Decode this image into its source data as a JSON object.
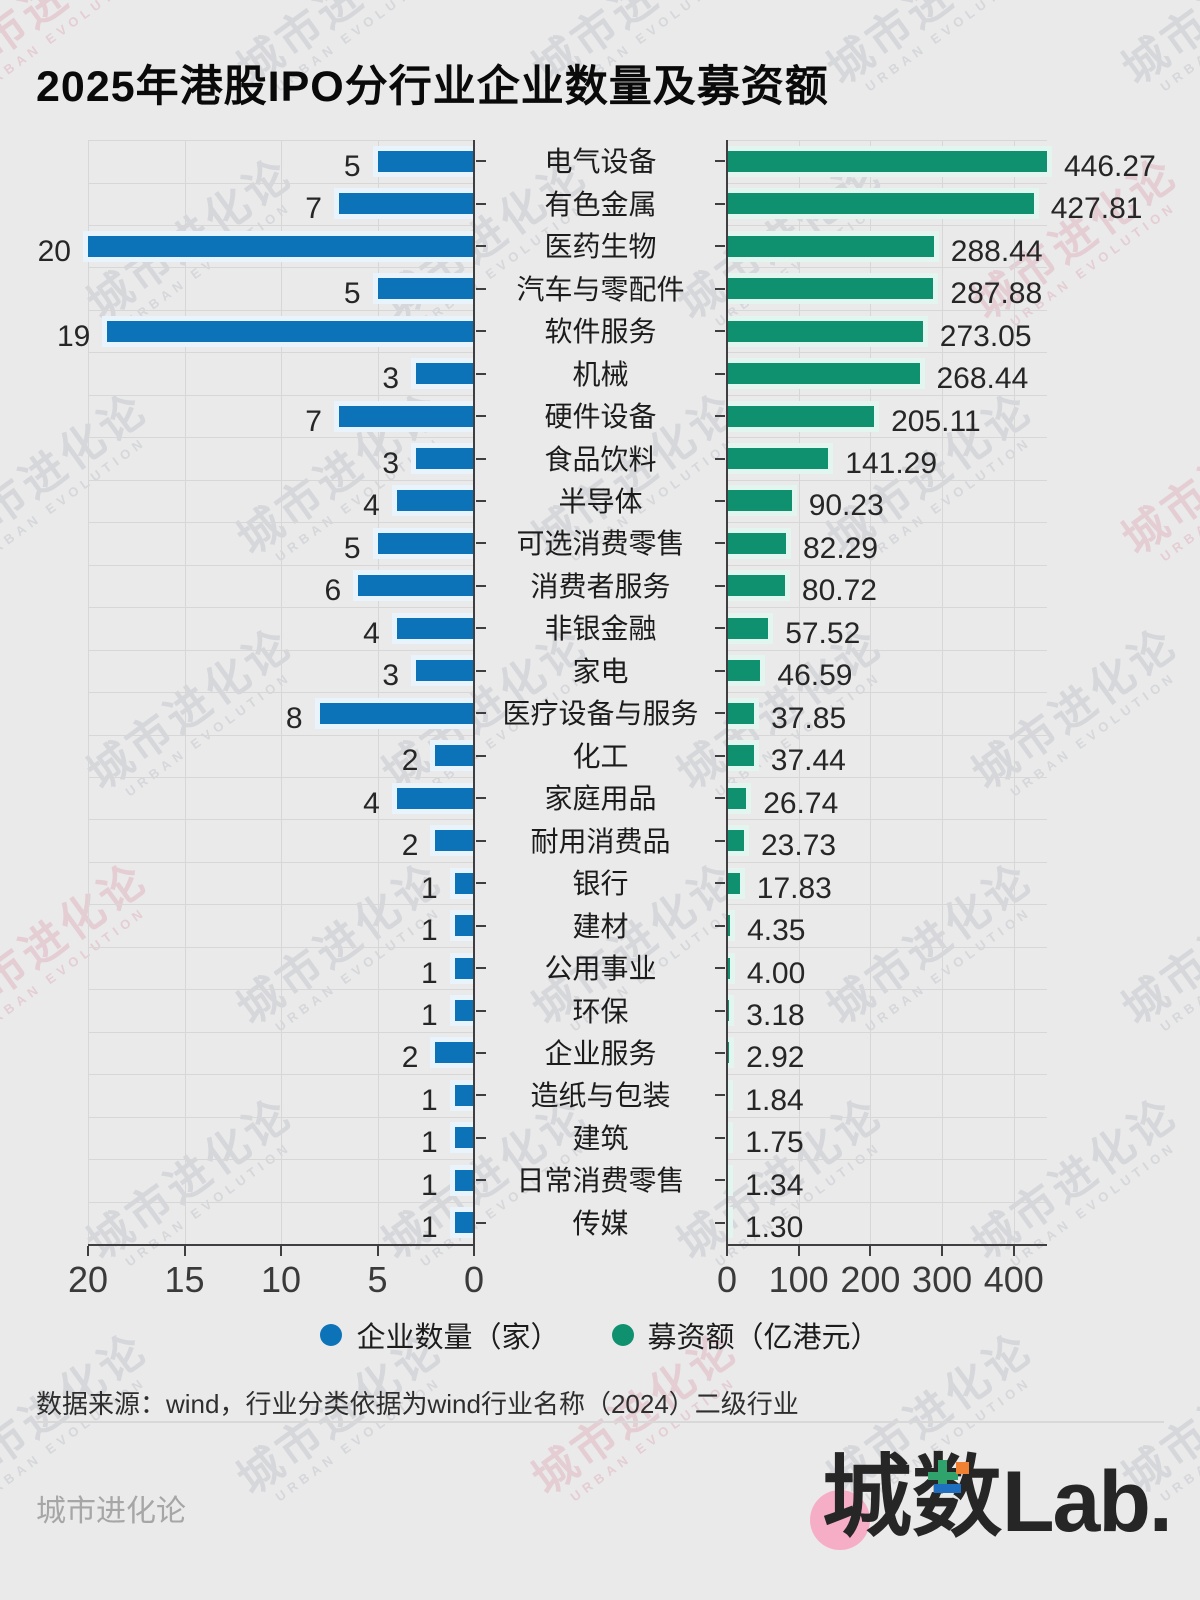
{
  "title": "2025年港股IPO分行业企业数量及募资额",
  "watermark": {
    "line1": "城市进化论",
    "line2": "URBAN EVOLUTION"
  },
  "chart_data": {
    "type": "bar",
    "layout": "horizontal-butterfly",
    "title": "2025年港股IPO分行业企业数量及募资额",
    "categories": [
      "电气设备",
      "有色金属",
      "医药生物",
      "汽车与零配件",
      "软件服务",
      "机械",
      "硬件设备",
      "食品饮料",
      "半导体",
      "可选消费零售",
      "消费者服务",
      "非银金融",
      "家电",
      "医疗设备与服务",
      "化工",
      "家庭用品",
      "耐用消费品",
      "银行",
      "建材",
      "公用事业",
      "环保",
      "企业服务",
      "造纸与包装",
      "建筑",
      "日常消费零售",
      "传媒"
    ],
    "series": [
      {
        "name": "企业数量（家）",
        "color": "#0d73b8",
        "halo_color": "#e8f3fb",
        "direction": "left",
        "values": [
          5,
          7,
          20,
          5,
          19,
          3,
          7,
          3,
          4,
          5,
          6,
          4,
          3,
          8,
          2,
          4,
          2,
          1,
          1,
          1,
          1,
          2,
          1,
          1,
          1,
          1
        ],
        "axis_ticks": [
          20,
          15,
          10,
          5,
          0
        ],
        "xlim": [
          0,
          20
        ],
        "value_decimals": 0
      },
      {
        "name": "募资额（亿港元）",
        "color": "#0f9170",
        "halo_color": "#e3f5ef",
        "direction": "right",
        "values": [
          446.27,
          427.81,
          288.44,
          287.88,
          273.05,
          268.44,
          205.11,
          141.29,
          90.23,
          82.29,
          80.72,
          57.52,
          46.59,
          37.85,
          37.44,
          26.74,
          23.73,
          17.83,
          4.35,
          4.0,
          3.18,
          2.92,
          1.84,
          1.75,
          1.34,
          1.3
        ],
        "axis_ticks": [
          0,
          100,
          200,
          300,
          400
        ],
        "xlim": [
          0,
          450
        ],
        "value_decimals": 2
      }
    ],
    "grid": true,
    "legend_position": "bottom"
  },
  "legend": {
    "items": [
      {
        "label": "企业数量（家）",
        "color": "#0d73b8"
      },
      {
        "label": "募资额（亿港元）",
        "color": "#0f9170"
      }
    ]
  },
  "source_note": "数据来源：wind，行业分类依据为wind行业名称（2024）二级行业",
  "footer": {
    "brand": "城市进化论",
    "logo": {
      "cn": "城数",
      "en": "Lab.",
      "pink": "#f6aec7",
      "accent_green": "#2fa36b",
      "accent_orange": "#f08133",
      "accent_blue": "#1f6fc0"
    }
  }
}
